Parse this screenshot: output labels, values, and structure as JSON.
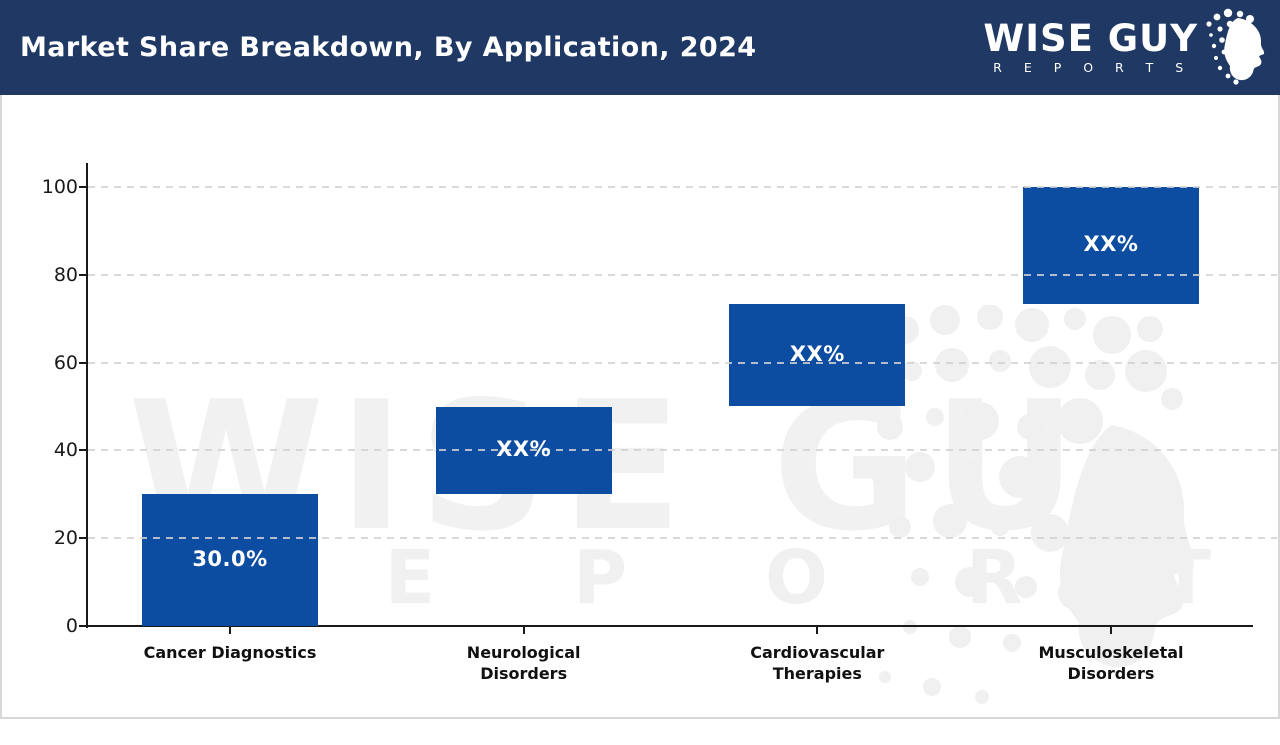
{
  "header": {
    "title": "Market Share Breakdown, By Application, 2024",
    "bg_color": "#1f3864",
    "logo_line1": "WISE GUY",
    "logo_line2": "R E P O R T S"
  },
  "watermark": {
    "line1": "WISE GU",
    "line2": "R E P O R T S"
  },
  "chart_data": {
    "type": "bar",
    "subtype": "floating-waterfall",
    "title": "Market Share Breakdown, By Application, 2024",
    "categories": [
      "Cancer Diagnostics",
      "Neurological Disorders",
      "Cardiovascular Therapies",
      "Musculoskeletal Disorders"
    ],
    "category_lines": [
      [
        "Cancer Diagnostics"
      ],
      [
        "Neurological",
        "Disorders"
      ],
      [
        "Cardiovascular",
        "Therapies"
      ],
      [
        "Musculoskeletal",
        "Disorders"
      ]
    ],
    "segments": [
      {
        "category": "Cancer Diagnostics",
        "start": 0,
        "end": 30,
        "label": "30.0%"
      },
      {
        "category": "Neurological Disorders",
        "start": 30,
        "end": 50,
        "label": "XX%"
      },
      {
        "category": "Cardiovascular Therapies",
        "start": 50,
        "end": 73.4,
        "label": "XX%"
      },
      {
        "category": "Musculoskeletal Disorders",
        "start": 73.4,
        "end": 100,
        "label": "XX%"
      }
    ],
    "ylim": [
      0,
      100
    ],
    "yticks": [
      0,
      20,
      40,
      60,
      80,
      100
    ],
    "grid": "horizontal-dashed",
    "legend": "none",
    "xlabel": "",
    "ylabel": "",
    "bar_color": "#0c4da2",
    "bar_label_color": "#ffffff",
    "axis_color": "#1a1a1a",
    "grid_color": "#d9d9d9",
    "tick_label_color": "#1a1a1a"
  }
}
